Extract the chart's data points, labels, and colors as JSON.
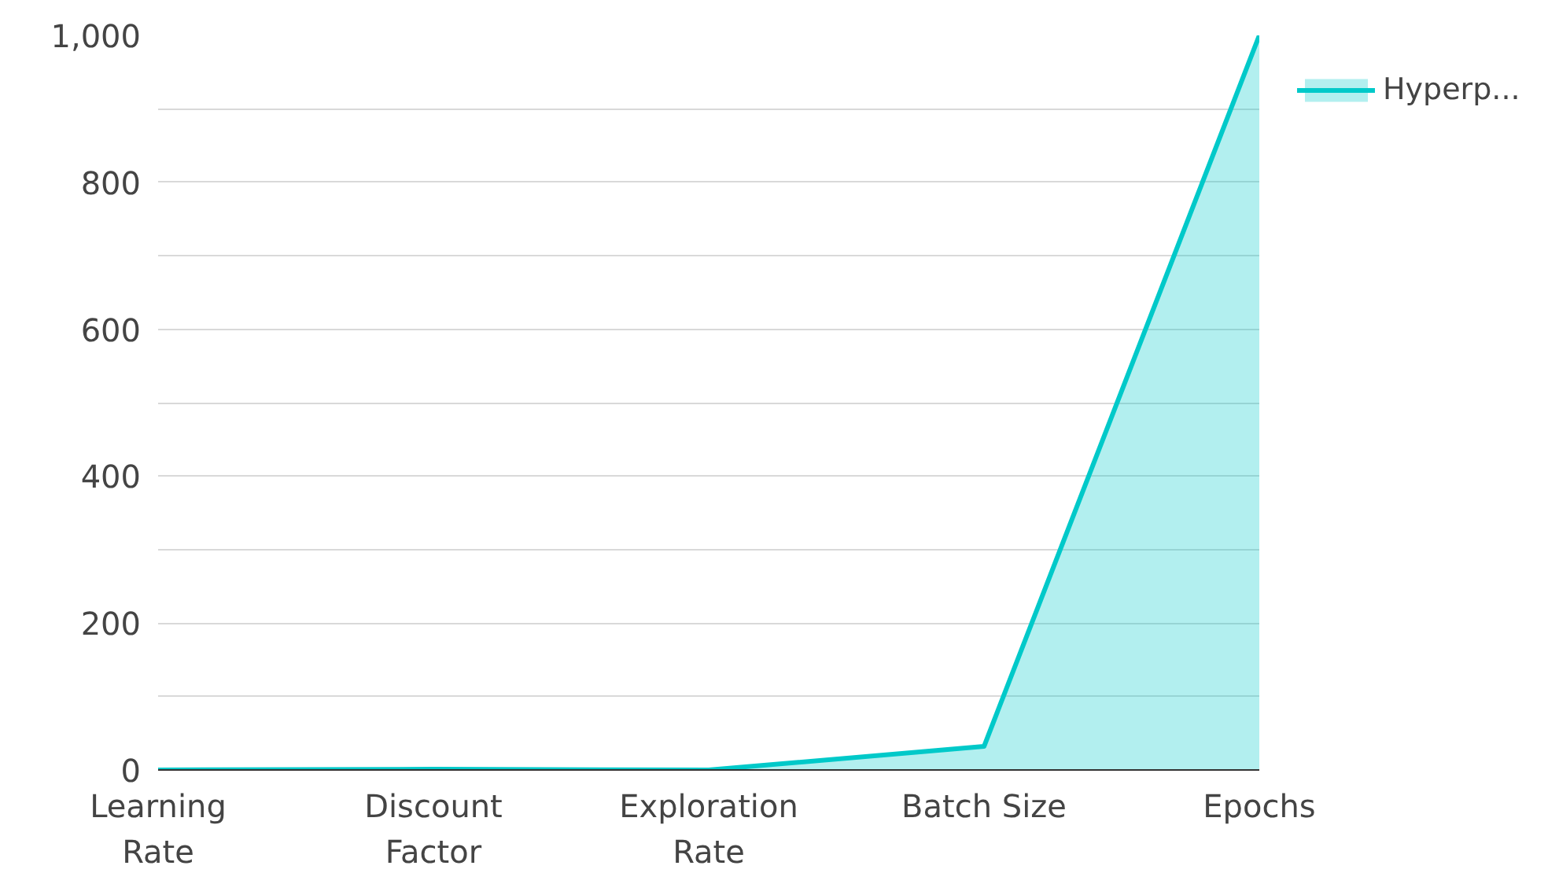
{
  "chart_data": {
    "type": "area",
    "categories": [
      "Learning Rate",
      "Discount Factor",
      "Exploration Rate",
      "Batch Size",
      "Epochs"
    ],
    "series": [
      {
        "name": "Hyperp...",
        "color": "#00c9c9",
        "values": [
          0,
          1,
          0,
          32,
          1000
        ]
      }
    ],
    "ylim": [
      0,
      1000
    ],
    "yticks": [
      0,
      {
        "value": 100,
        "label": null
      },
      200,
      {
        "value": 300,
        "label": null
      },
      400,
      {
        "value": 500,
        "label": null
      },
      600,
      {
        "value": 700,
        "label": null
      },
      800,
      {
        "value": 900,
        "label": null
      },
      {
        "value": 1000,
        "label": "1,000"
      }
    ],
    "grid": "y",
    "legend": "top right"
  }
}
